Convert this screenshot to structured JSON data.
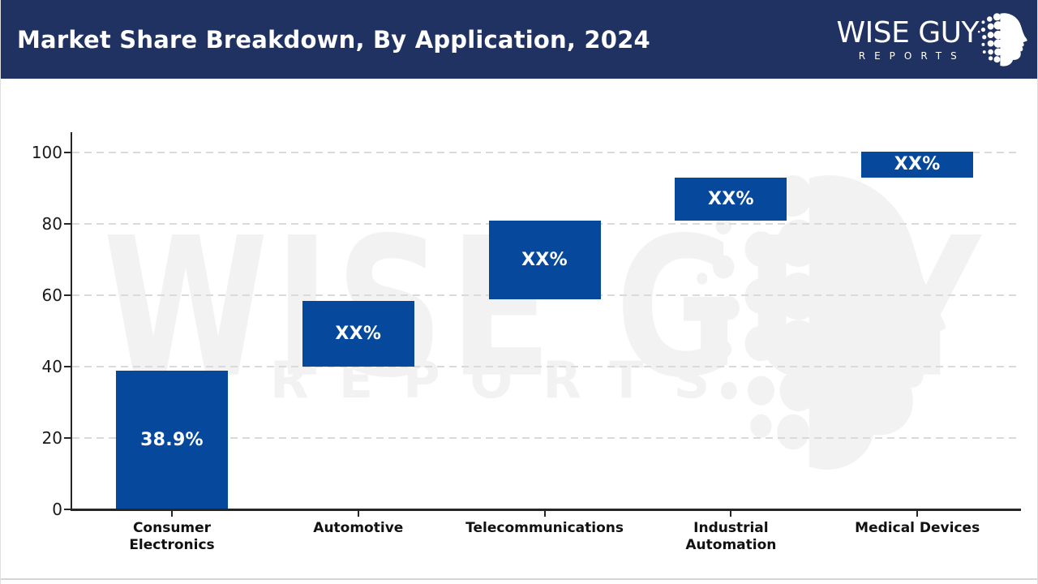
{
  "header": {
    "title": "Market Share Breakdown, By Application, 2024",
    "logo_line1": "WISE GUY",
    "logo_line2": "REPORTS"
  },
  "watermark": {
    "line1": "WISE GUY",
    "line2": "REPORTS"
  },
  "colors": {
    "header_bg": "#1f3261",
    "bar": "#05489c",
    "bar_label": "#ffffff",
    "grid": "#dadada",
    "axis": "#262626",
    "tick_text": "#1a1a1a",
    "watermark": "#f2f2f2"
  },
  "chart_data": {
    "type": "bar",
    "variant": "waterfall",
    "title": "Market Share Breakdown, By Application, 2024",
    "xlabel": "",
    "ylabel": "",
    "categories": [
      "Consumer Electronics",
      "Automotive",
      "Telecommunications",
      "Industrial Automation",
      "Medical Devices"
    ],
    "category_label_lines": [
      [
        "Consumer",
        "Electronics"
      ],
      [
        "Automotive"
      ],
      [
        "Telecommunications"
      ],
      [
        "Industrial",
        "Automation"
      ],
      [
        "Medical Devices"
      ]
    ],
    "segments": [
      {
        "category": "Consumer Electronics",
        "start": 0,
        "end": 38.9,
        "label": "38.9%"
      },
      {
        "category": "Automotive",
        "start": 39.9,
        "end": 58.5,
        "label": "XX%"
      },
      {
        "category": "Telecommunications",
        "start": 58.8,
        "end": 81.0,
        "label": "XX%"
      },
      {
        "category": "Industrial Automation",
        "start": 81.0,
        "end": 93.0,
        "label": "XX%"
      },
      {
        "category": "Medical Devices",
        "start": 93.0,
        "end": 100.3,
        "label": "XX%"
      }
    ],
    "yticks": [
      0,
      20,
      40,
      60,
      80,
      100
    ],
    "ylim": [
      0,
      105
    ],
    "grid": "horizontal-dashed",
    "legend": "none",
    "bar_color": "#05489c"
  }
}
